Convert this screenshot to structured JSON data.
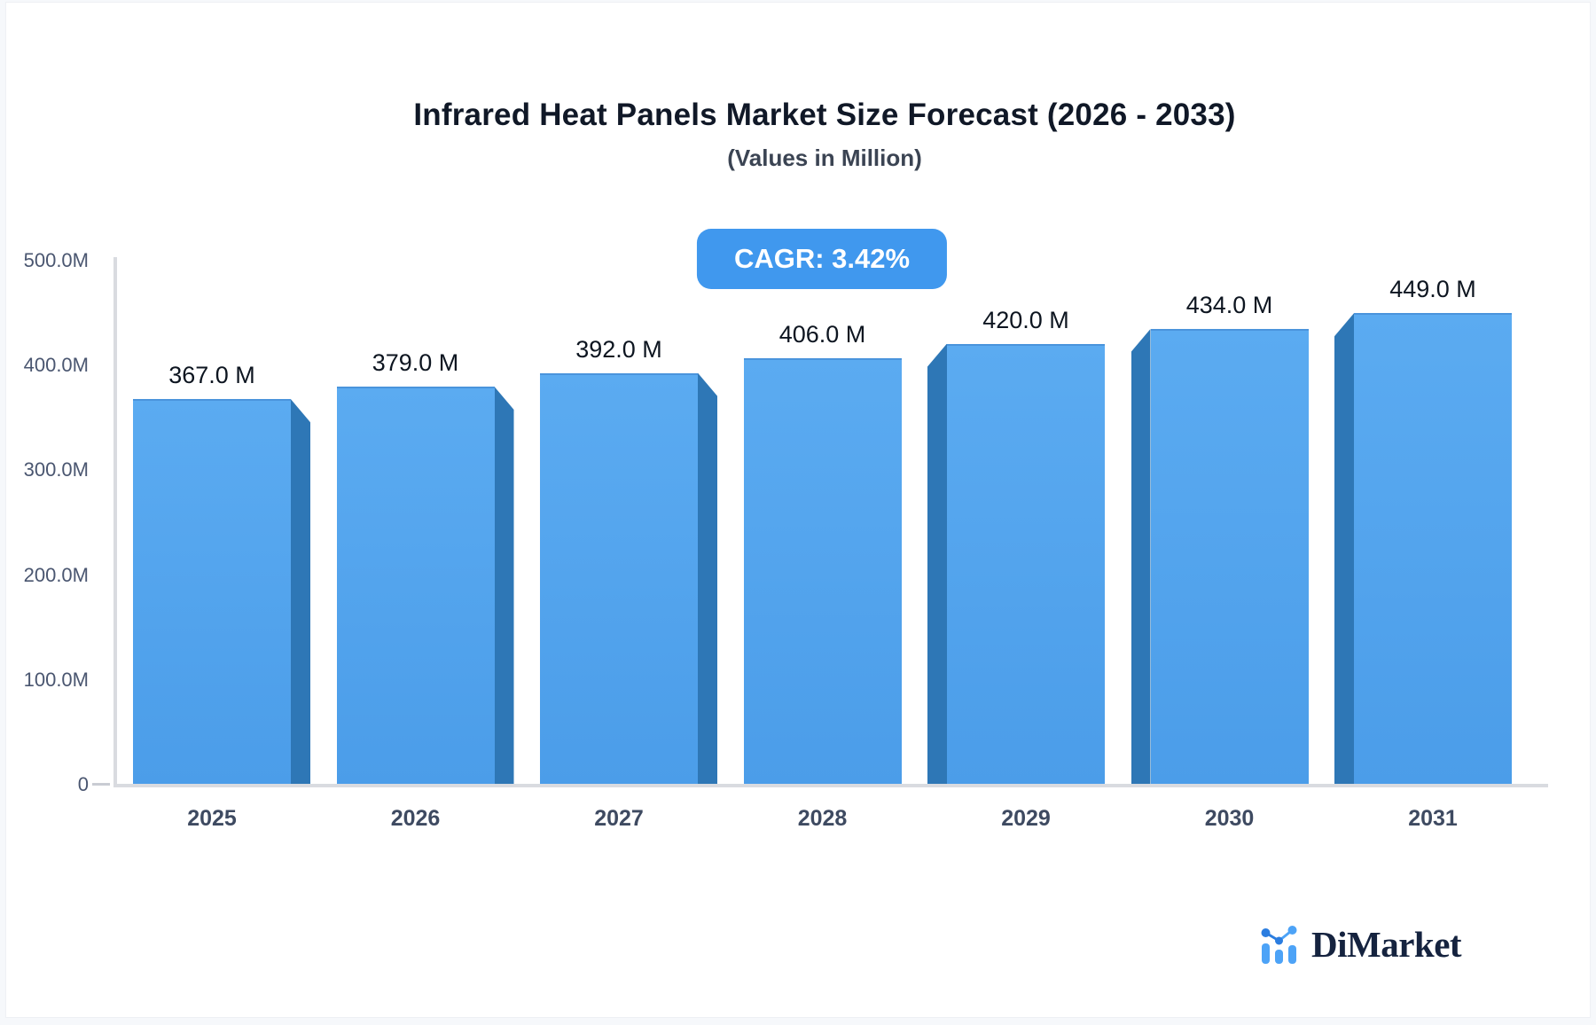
{
  "page": {
    "background": "#f6f8fb",
    "card_background": "#ffffff"
  },
  "header": {
    "title": "Infrared Heat Panels Market Size Forecast (2026 - 2033)",
    "subtitle": "(Values in Million)",
    "cagr_badge": "CAGR: 3.42%",
    "badge_color": "#4098ee"
  },
  "chart_data": {
    "type": "bar",
    "title": "Infrared Heat Panels Market Size Forecast (2026 - 2033)",
    "subtitle": "(Values in Million)",
    "annotation": "CAGR: 3.42%",
    "categories": [
      "2025",
      "2026",
      "2027",
      "2028",
      "2029",
      "2030",
      "2031"
    ],
    "values": [
      367,
      379,
      392,
      406,
      420,
      434,
      449
    ],
    "value_labels": [
      "367.0 M",
      "379.0 M",
      "392.0 M",
      "406.0 M",
      "420.0 M",
      "434.0 M",
      "449.0 M"
    ],
    "unit": "Million",
    "ylim": [
      0,
      500
    ],
    "ytick_values": [
      0,
      100,
      200,
      300,
      400,
      500
    ],
    "ytick_labels": [
      "0",
      "100.0M",
      "200.0M",
      "300.0M",
      "400.0M",
      "500.0M"
    ],
    "grid": false,
    "legend": false,
    "effect_3d": true,
    "bar_color_top": "#5babf1",
    "bar_color_bottom": "#4b9de9",
    "bar_top_edge_color": "#4a94dc",
    "bar_side_color": "#2e77b6",
    "axis_color": "#d9dbe0",
    "ytick_color": "#4a5670",
    "xtick_color": "#3e4a61",
    "value_label_color": "#0d1520"
  },
  "footer": {
    "brand": "DiMarket",
    "logo_icon": "bar-line-chart-icon"
  }
}
